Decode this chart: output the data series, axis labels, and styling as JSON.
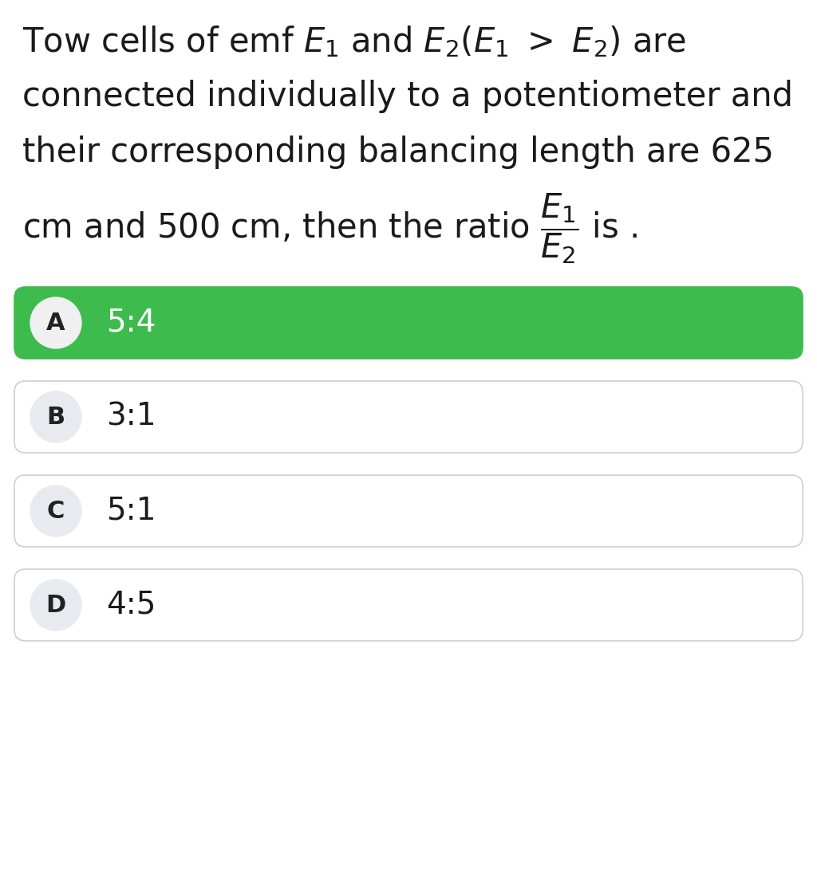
{
  "background_color": "#ffffff",
  "options": [
    {
      "label": "A",
      "text": "5:4",
      "correct": true
    },
    {
      "label": "B",
      "text": "3:1",
      "correct": false
    },
    {
      "label": "C",
      "text": "5:1",
      "correct": false
    },
    {
      "label": "D",
      "text": "4:5",
      "correct": false
    }
  ],
  "correct_bg_color": "#3dbb4d",
  "incorrect_bg_color": "#ffffff",
  "correct_label_bg": "#f0f0f0",
  "incorrect_label_bg": "#e8eaf0",
  "option_border_color": "#d0d0d0",
  "text_color": "#1a1a1a",
  "option_text_color_correct": "#ffffff",
  "option_text_color_incorrect": "#1a1a1a",
  "label_text_color": "#222222",
  "font_size_question": 30,
  "font_size_option": 28,
  "font_size_label": 22
}
